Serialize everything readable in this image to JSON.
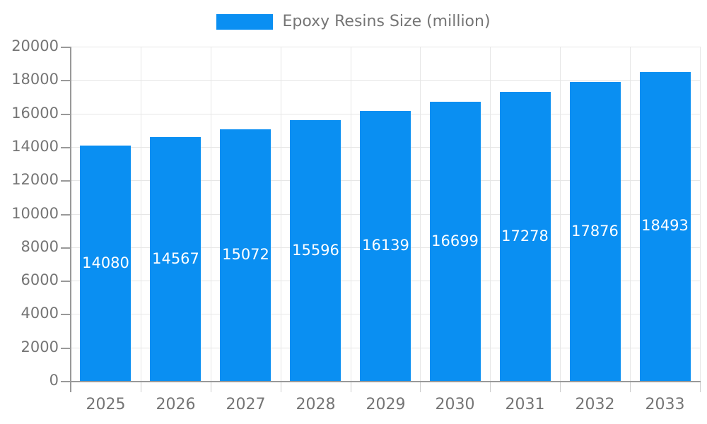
{
  "chart_data": {
    "type": "bar",
    "title": "",
    "legend": "Epoxy Resins Size (million)",
    "legend_position": "top",
    "categories": [
      "2025",
      "2026",
      "2027",
      "2028",
      "2029",
      "2030",
      "2031",
      "2032",
      "2033"
    ],
    "series": [
      {
        "name": "Epoxy Resins Size (million)",
        "values": [
          14080,
          14567,
          15072,
          15596,
          16139,
          16699,
          17278,
          17876,
          18493
        ]
      }
    ],
    "xlabel": "",
    "ylabel": "",
    "ylim": [
      0,
      20000
    ],
    "ytick_step": 2000,
    "ytick_labels": [
      "0",
      "2000",
      "4000",
      "6000",
      "8000",
      "10000",
      "12000",
      "14000",
      "16000",
      "18000",
      "20000"
    ],
    "grid": "horizontal and vertical gridlines on",
    "bar_value_labels": "inside bars, vertically centered, white",
    "colors": {
      "bar": "#0A8FF2",
      "grid_line": "#e6e6e6",
      "axis_line": "#999999",
      "x_tick_mark": "#cccccc",
      "y_tick_mark": "#999999",
      "axis_text": "#757575",
      "legend_text": "#757575",
      "bar_label_text": "#ffffff",
      "background": "#ffffff"
    }
  }
}
